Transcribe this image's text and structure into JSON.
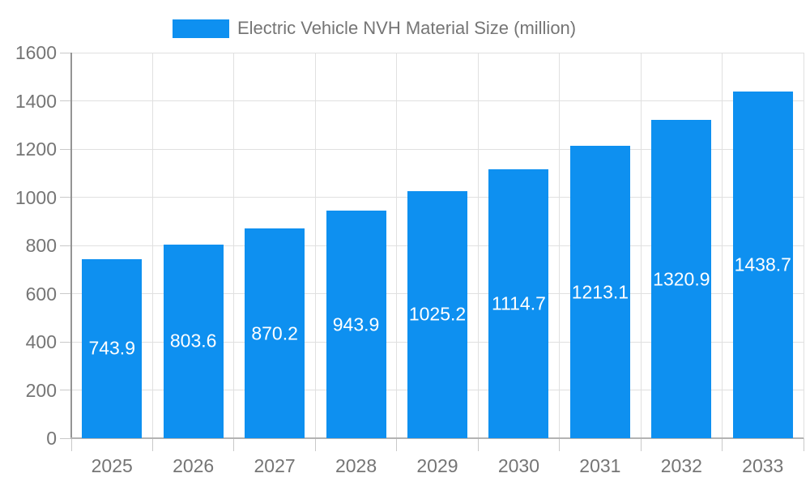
{
  "chart_data": {
    "type": "bar",
    "title": "Electric Vehicle NVH Material Size (million)",
    "categories": [
      "2025",
      "2026",
      "2027",
      "2028",
      "2029",
      "2030",
      "2031",
      "2032",
      "2033"
    ],
    "values": [
      743.9,
      803.6,
      870.2,
      943.9,
      1025.2,
      1114.7,
      1213.1,
      1320.9,
      1438.7
    ],
    "value_labels": [
      "743.9",
      "803.6",
      "870.2",
      "943.9",
      "1025.2",
      "1114.7",
      "1213.1",
      "1320.9",
      "1438.7"
    ],
    "xlabel": "",
    "ylabel": "",
    "ylim": [
      0,
      1600
    ],
    "ytick_step": 200,
    "ytick_labels": [
      "0",
      "200",
      "400",
      "600",
      "800",
      "1000",
      "1200",
      "1400",
      "1600"
    ],
    "grid": true,
    "legend_position": "top-center",
    "colors": {
      "bar": "#0e90f0",
      "bar_value_text": "#ffffff",
      "axis_text": "#757575",
      "legend_text": "#757575",
      "gridline": "#e0e0e0",
      "tick": "#c9c9c9",
      "y_axis_line": "#949494",
      "x_axis_line": "#b3b3b3",
      "background": "#ffffff"
    }
  }
}
